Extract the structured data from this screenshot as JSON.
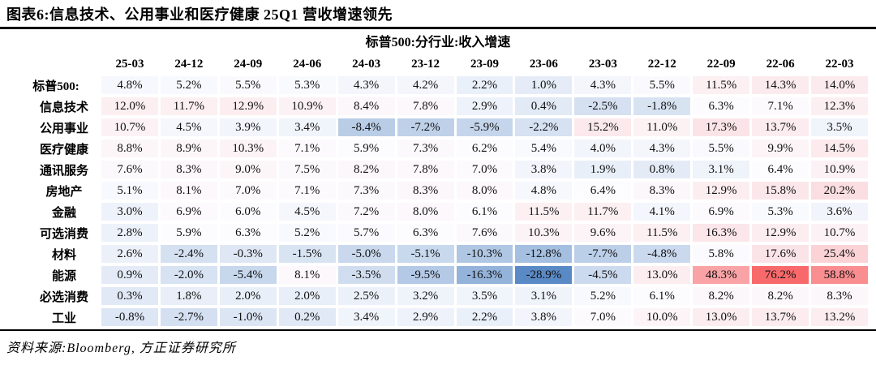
{
  "title": "图表6:信息技术、公用事业和医疗健康 25Q1 营收增速领先",
  "footer": "资料来源:Bloomberg, 方正证券研究所",
  "table": {
    "header": "标普500:分行业:收入增速",
    "columns": [
      "25-03",
      "24-12",
      "24-09",
      "24-06",
      "24-03",
      "23-12",
      "23-09",
      "23-06",
      "23-03",
      "22-12",
      "22-09",
      "22-06",
      "22-03"
    ],
    "rows": [
      {
        "label": "标普500:",
        "indent": 0,
        "values": [
          4.8,
          5.2,
          5.5,
          5.3,
          4.3,
          4.2,
          2.2,
          1.0,
          4.3,
          5.5,
          11.5,
          14.3,
          14.0
        ]
      },
      {
        "label": "信息技术",
        "indent": 1,
        "values": [
          12.0,
          11.7,
          12.9,
          10.9,
          8.4,
          7.8,
          2.9,
          0.4,
          -2.5,
          -1.8,
          6.3,
          7.1,
          12.3
        ]
      },
      {
        "label": "公用事业",
        "indent": 1,
        "values": [
          10.7,
          4.5,
          3.9,
          3.4,
          -8.4,
          -7.2,
          -5.9,
          -2.2,
          15.2,
          11.0,
          17.3,
          13.7,
          3.5
        ]
      },
      {
        "label": "医疗健康",
        "indent": 1,
        "values": [
          8.8,
          8.9,
          10.3,
          7.1,
          5.9,
          7.3,
          6.2,
          5.4,
          4.0,
          4.3,
          5.5,
          9.9,
          14.5
        ]
      },
      {
        "label": "通讯服务",
        "indent": 1,
        "values": [
          7.6,
          8.3,
          9.0,
          7.5,
          8.2,
          7.8,
          7.0,
          3.8,
          1.9,
          0.8,
          3.1,
          6.4,
          10.9
        ]
      },
      {
        "label": "房地产",
        "indent": 1,
        "values": [
          5.1,
          8.1,
          7.0,
          7.1,
          7.3,
          8.3,
          8.0,
          4.8,
          6.4,
          8.3,
          12.9,
          15.8,
          20.2
        ]
      },
      {
        "label": "金融",
        "indent": 1,
        "values": [
          3.0,
          6.9,
          6.0,
          4.5,
          7.2,
          8.0,
          6.1,
          11.5,
          11.7,
          4.1,
          6.9,
          5.3,
          3.6
        ]
      },
      {
        "label": "可选消费",
        "indent": 1,
        "values": [
          2.8,
          5.9,
          6.3,
          5.2,
          5.7,
          6.3,
          7.6,
          10.3,
          9.6,
          11.5,
          16.3,
          12.9,
          10.7
        ]
      },
      {
        "label": "材料",
        "indent": 1,
        "values": [
          2.6,
          -2.4,
          -0.3,
          -1.5,
          -5.0,
          -5.1,
          -10.3,
          -12.8,
          -7.7,
          -4.8,
          5.8,
          17.6,
          25.4
        ]
      },
      {
        "label": "能源",
        "indent": 1,
        "values": [
          0.9,
          -2.0,
          -5.4,
          8.1,
          -3.5,
          -9.5,
          -16.3,
          -28.9,
          -4.5,
          13.0,
          48.3,
          76.2,
          58.8
        ]
      },
      {
        "label": "必选消费",
        "indent": 1,
        "values": [
          0.3,
          1.8,
          2.0,
          2.0,
          2.5,
          3.2,
          3.5,
          3.1,
          5.2,
          6.1,
          8.2,
          8.2,
          8.3
        ]
      },
      {
        "label": "工业",
        "indent": 1,
        "values": [
          -0.8,
          -2.7,
          -1.0,
          0.2,
          3.4,
          2.9,
          2.2,
          3.8,
          7.0,
          10.0,
          13.0,
          13.7,
          13.2
        ]
      }
    ],
    "value_suffix": "%"
  },
  "heatmap_scale": {
    "min": -28.9,
    "mid": 6.0,
    "max": 76.2,
    "min_color": "#5A8AC6",
    "mid_color": "#FCFCFF",
    "max_color": "#F8696B"
  },
  "chart_data": {
    "type": "heatmap",
    "title": "标普500:分行业:收入增速",
    "x": [
      "25-03",
      "24-12",
      "24-09",
      "24-06",
      "24-03",
      "23-12",
      "23-09",
      "23-06",
      "23-03",
      "22-12",
      "22-09",
      "22-06",
      "22-03"
    ],
    "series": [
      {
        "name": "标普500:",
        "values": [
          4.8,
          5.2,
          5.5,
          5.3,
          4.3,
          4.2,
          2.2,
          1.0,
          4.3,
          5.5,
          11.5,
          14.3,
          14.0
        ]
      },
      {
        "name": "信息技术",
        "values": [
          12.0,
          11.7,
          12.9,
          10.9,
          8.4,
          7.8,
          2.9,
          0.4,
          -2.5,
          -1.8,
          6.3,
          7.1,
          12.3
        ]
      },
      {
        "name": "公用事业",
        "values": [
          10.7,
          4.5,
          3.9,
          3.4,
          -8.4,
          -7.2,
          -5.9,
          -2.2,
          15.2,
          11.0,
          17.3,
          13.7,
          3.5
        ]
      },
      {
        "name": "医疗健康",
        "values": [
          8.8,
          8.9,
          10.3,
          7.1,
          5.9,
          7.3,
          6.2,
          5.4,
          4.0,
          4.3,
          5.5,
          9.9,
          14.5
        ]
      },
      {
        "name": "通讯服务",
        "values": [
          7.6,
          8.3,
          9.0,
          7.5,
          8.2,
          7.8,
          7.0,
          3.8,
          1.9,
          0.8,
          3.1,
          6.4,
          10.9
        ]
      },
      {
        "name": "房地产",
        "values": [
          5.1,
          8.1,
          7.0,
          7.1,
          7.3,
          8.3,
          8.0,
          4.8,
          6.4,
          8.3,
          12.9,
          15.8,
          20.2
        ]
      },
      {
        "name": "金融",
        "values": [
          3.0,
          6.9,
          6.0,
          4.5,
          7.2,
          8.0,
          6.1,
          11.5,
          11.7,
          4.1,
          6.9,
          5.3,
          3.6
        ]
      },
      {
        "name": "可选消费",
        "values": [
          2.8,
          5.9,
          6.3,
          5.2,
          5.7,
          6.3,
          7.6,
          10.3,
          9.6,
          11.5,
          16.3,
          12.9,
          10.7
        ]
      },
      {
        "name": "材料",
        "values": [
          2.6,
          -2.4,
          -0.3,
          -1.5,
          -5.0,
          -5.1,
          -10.3,
          -12.8,
          -7.7,
          -4.8,
          5.8,
          17.6,
          25.4
        ]
      },
      {
        "name": "能源",
        "values": [
          0.9,
          -2.0,
          -5.4,
          8.1,
          -3.5,
          -9.5,
          -16.3,
          -28.9,
          -4.5,
          13.0,
          48.3,
          76.2,
          58.8
        ]
      },
      {
        "name": "必选消费",
        "values": [
          0.3,
          1.8,
          2.0,
          2.0,
          2.5,
          3.2,
          3.5,
          3.1,
          5.2,
          6.1,
          8.2,
          8.2,
          8.3
        ]
      },
      {
        "name": "工业",
        "values": [
          -0.8,
          -2.7,
          -1.0,
          0.2,
          3.4,
          2.9,
          2.2,
          3.8,
          7.0,
          10.0,
          13.0,
          13.7,
          13.2
        ]
      }
    ],
    "unit": "%",
    "color_scale": {
      "low": "#5A8AC6",
      "mid": "#FCFCFF",
      "high": "#F8696B",
      "low_value": -28.9,
      "mid_value": 6.0,
      "high_value": 76.2
    },
    "legend_position": "none",
    "grid": false
  }
}
